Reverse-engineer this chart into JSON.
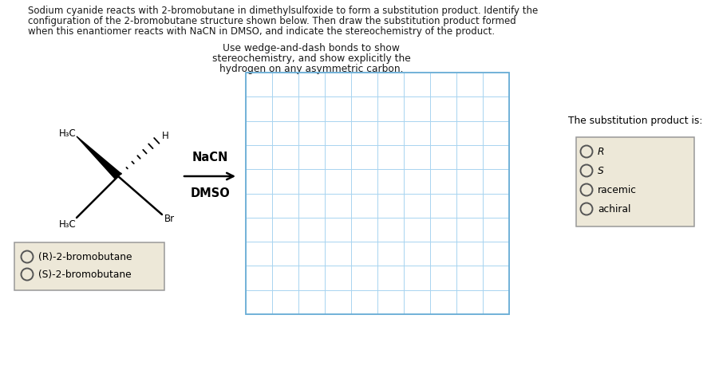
{
  "bg_color": "#ffffff",
  "title_text_line1": "Sodium cyanide reacts with 2-bromobutane in dimethylsulfoxide to form a substitution product. Identify the",
  "title_text_line2": "configuration of the 2-bromobutane structure shown below. Then draw the substitution product formed",
  "title_text_line3": "when this enantiomer reacts with NaCN in DMSO, and indicate the stereochemistry of the product.",
  "instruction_line1": "Use wedge-and-dash bonds to show",
  "instruction_line2": "stereochemistry, and show explicitly the",
  "instruction_line3": "hydrogen on any asymmetric carbon.",
  "nacn_label": "NaCN",
  "dmso_label": "DMSO",
  "h3c_top": "H₃C",
  "h3c_bottom": "H₃C",
  "br_label": "Br",
  "h_label": "H",
  "radio_options_left": [
    "(R)-2-bromobutane",
    "(S)-2-bromobutane"
  ],
  "subst_label": "The substitution product is:",
  "radio_options_right": [
    "R",
    "S",
    "racemic",
    "achiral"
  ],
  "grid_color": "#a8d4f0",
  "grid_border_color": "#6aaed6",
  "box_bg_color": "#ede8d8",
  "box_border_color": "#999999",
  "font_size_title": 8.5,
  "font_size_instr": 8.8,
  "font_size_chem": 8.5,
  "font_size_nacn": 10.5,
  "font_size_radio": 8.8,
  "font_size_subst": 8.8
}
